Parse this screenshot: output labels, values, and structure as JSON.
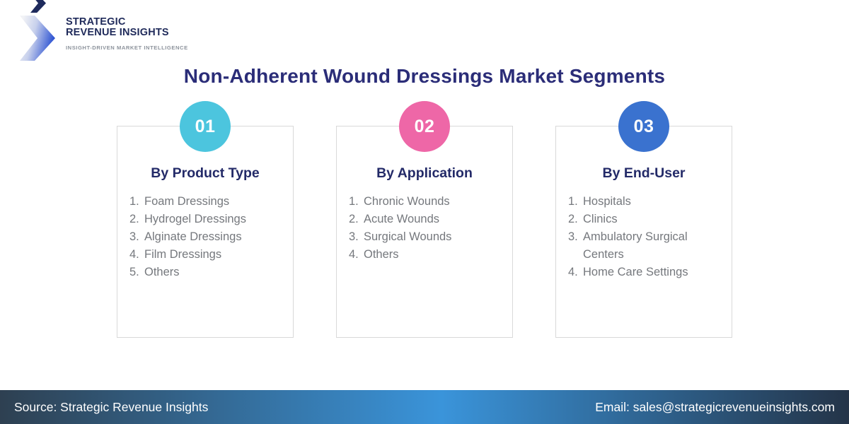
{
  "logo": {
    "line1": "STRATEGIC",
    "line2": "REVENUE INSIGHTS",
    "tagline": "INSIGHT-DRIVEN MARKET INTELLIGENCE"
  },
  "title": "Non-Adherent Wound Dressings Market Segments",
  "cards": [
    {
      "number": "01",
      "circle_color": "#4cc5de",
      "heading": "By Product Type",
      "items": [
        "Foam Dressings",
        "Hydrogel Dressings",
        "Alginate Dressings",
        "Film Dressings",
        "Others"
      ]
    },
    {
      "number": "02",
      "circle_color": "#ee67a7",
      "heading": "By Application",
      "items": [
        "Chronic Wounds",
        "Acute Wounds",
        "Surgical Wounds",
        "Others"
      ]
    },
    {
      "number": "03",
      "circle_color": "#3a72cf",
      "heading": "By End-User",
      "items": [
        "Hospitals",
        "Clinics",
        "Ambulatory Surgical Centers",
        "Home Care Settings"
      ]
    }
  ],
  "footer": {
    "source": "Source: Strategic Revenue Insights",
    "email": "Email: sales@strategicrevenueinsights.com"
  },
  "colors": {
    "title_navy": "#2b2d78",
    "heading_navy": "#232a68",
    "list_gray": "#75787d",
    "card_border": "#d9d9d9",
    "logo_navy": "#1f2a5a",
    "logo_blue": "#2d53d2",
    "tagline_gray": "#8d939c",
    "footer_left": "#2e4051",
    "footer_mid_blue": "#3a94da",
    "footer_right": "#243448"
  }
}
